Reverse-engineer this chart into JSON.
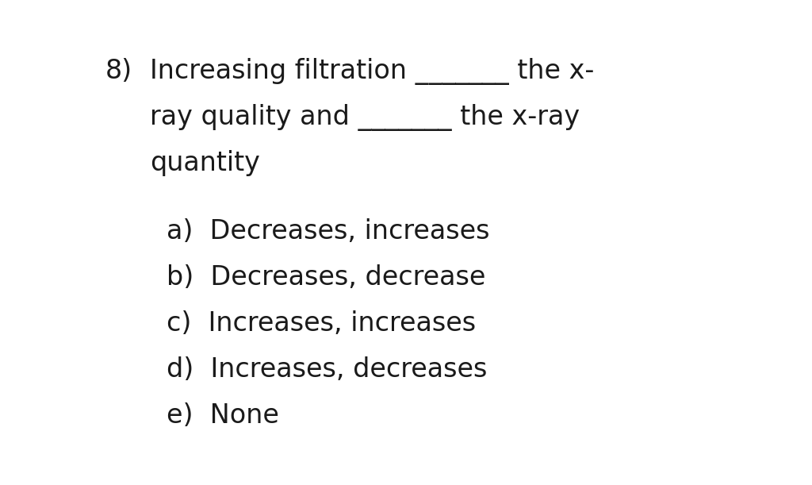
{
  "background_color": "#ffffff",
  "question_num": "8)",
  "question_line1": "Increasing filtration _______ the x-",
  "question_line2": "ray quality and _______ the x-ray",
  "question_line3": "quantity",
  "options": [
    "a)  Decreases, increases",
    "b)  Decreases, decrease",
    "c)  Increases, increases",
    "d)  Increases, decreases",
    "e)  None"
  ],
  "font_size": 24,
  "text_color": "#1a1a1a",
  "font_family": "DejaVu Sans",
  "font_weight": "normal"
}
